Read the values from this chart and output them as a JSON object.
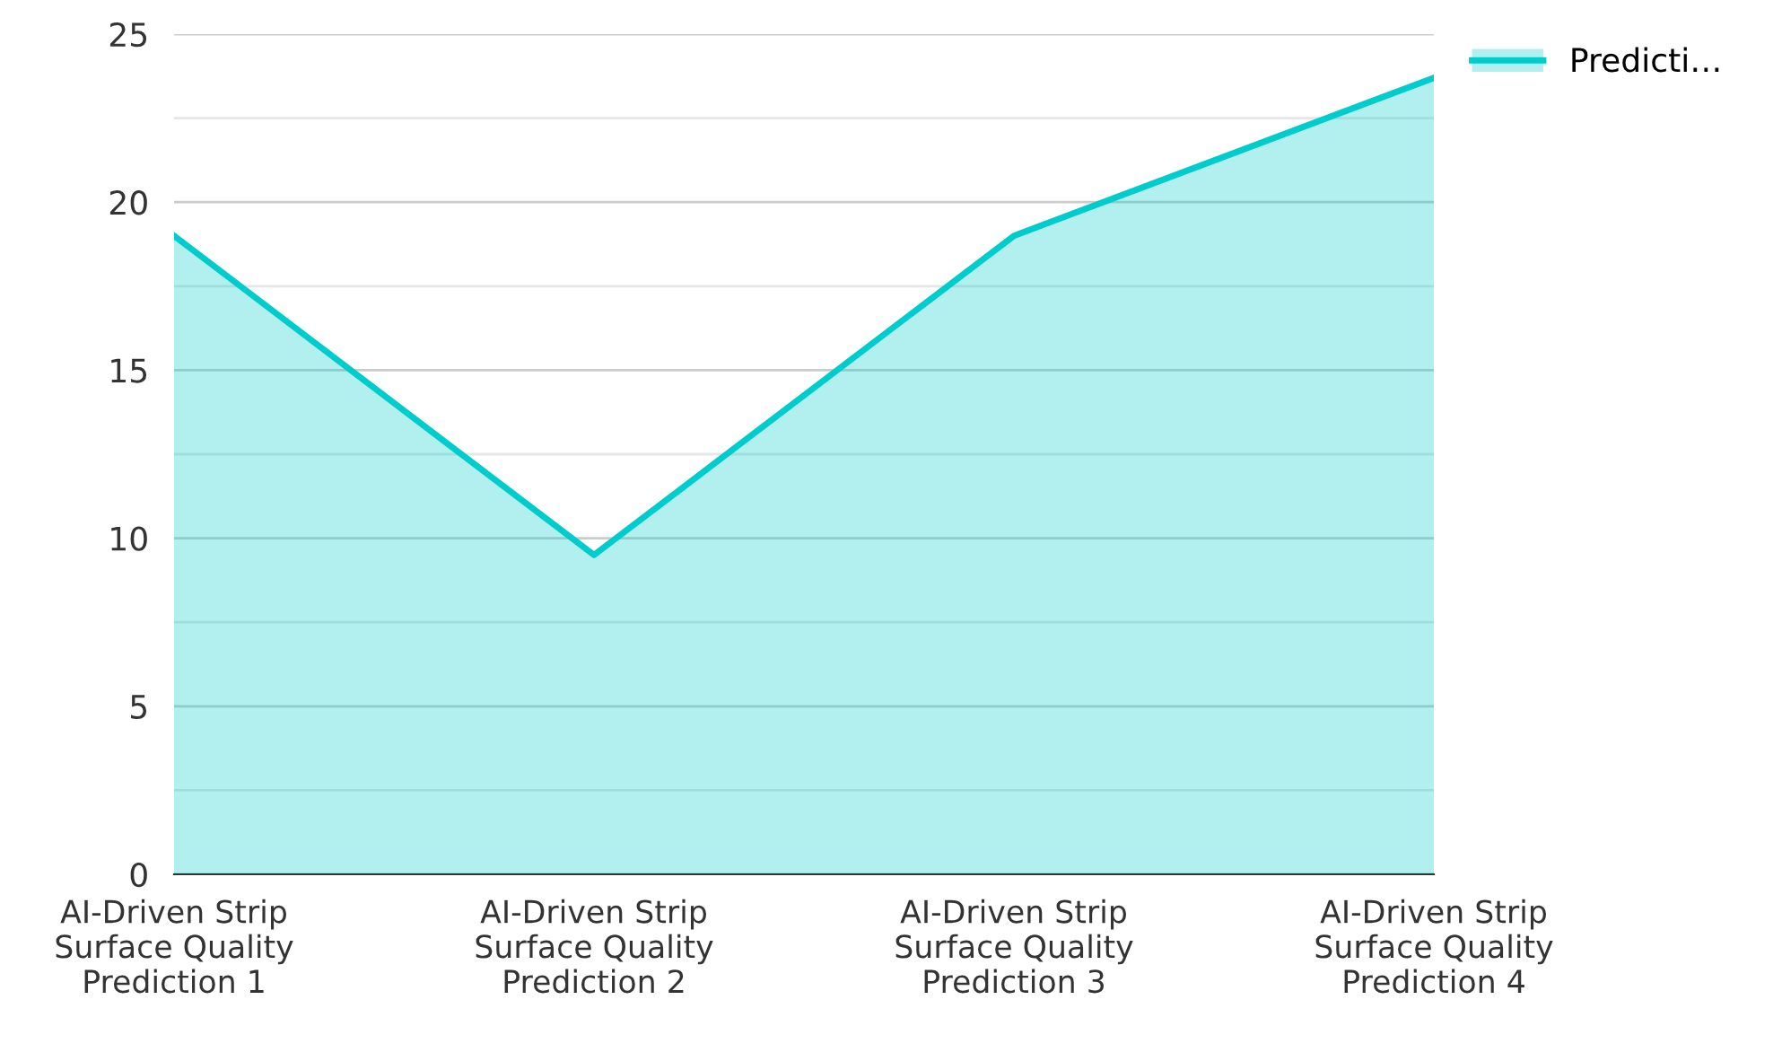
{
  "chart_data": {
    "type": "area",
    "categories": [
      "AI-Driven Strip\nSurface Quality\nPrediction 1",
      "AI-Driven Strip\nSurface Quality\nPrediction 2",
      "AI-Driven Strip\nSurface Quality\nPrediction 3",
      "AI-Driven Strip\nSurface Quality\nPrediction 4"
    ],
    "series": [
      {
        "name": "Predicti…",
        "color": "#00cccc",
        "values": [
          19,
          9.5,
          19,
          23.7
        ]
      }
    ],
    "ylim": [
      0,
      25
    ],
    "yticks": [
      0,
      {
        "value": 2.5,
        "label": null
      },
      5,
      {
        "value": 7.5,
        "label": null
      },
      10,
      {
        "value": 12.5,
        "label": null
      },
      15,
      {
        "value": 17.5,
        "label": null
      },
      20,
      {
        "value": 22.5,
        "label": null
      },
      25
    ],
    "grid": "y",
    "legend": "top right",
    "marker": "none",
    "line_style": "solid"
  }
}
